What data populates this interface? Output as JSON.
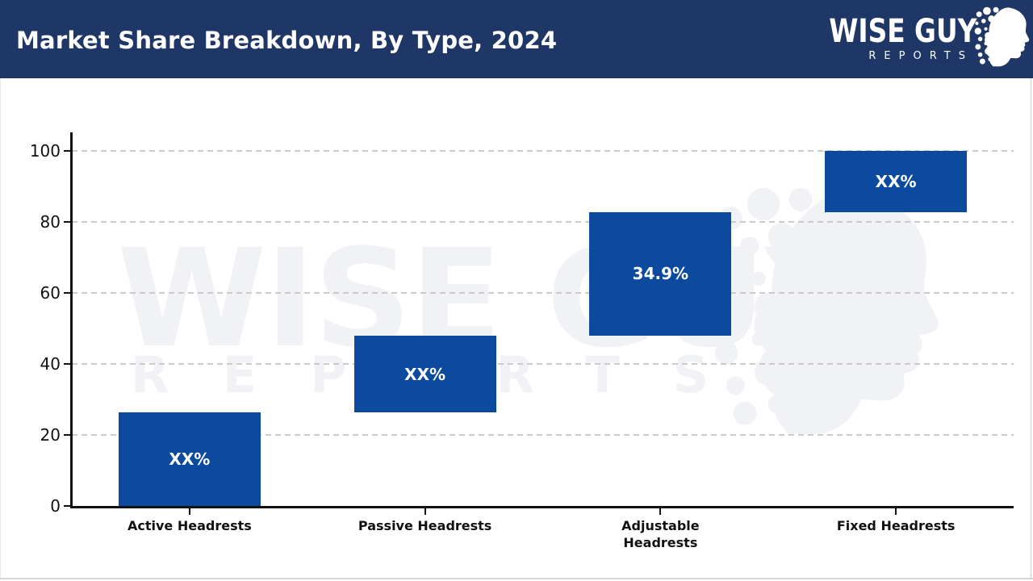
{
  "header": {
    "title": "Market Share Breakdown, By Type, 2024",
    "logo": {
      "line1": "WISE GUY",
      "line2": "REPORTS"
    }
  },
  "watermark": {
    "line1": "WISE GUY",
    "line2": "REPORTS"
  },
  "chart_data": {
    "type": "bar",
    "subtype": "waterfall",
    "title": "Market Share Breakdown, By Type, 2024",
    "unit": "%",
    "categories": [
      "Active Headrests",
      "Passive Headrests",
      "Adjustable\nHeadrests",
      "Fixed Headrests"
    ],
    "series": [
      {
        "name": "Market share",
        "segments": [
          {
            "category": "Active Headrests",
            "start": 0,
            "end": 26.3,
            "label": "XX%"
          },
          {
            "category": "Passive Headrests",
            "start": 26.3,
            "end": 47.9,
            "label": "XX%"
          },
          {
            "category": "Adjustable Headrests",
            "start": 47.9,
            "end": 82.8,
            "label": "34.9%"
          },
          {
            "category": "Fixed Headrests",
            "start": 82.8,
            "end": 100,
            "label": "XX%"
          }
        ]
      }
    ],
    "ylim": [
      0,
      100
    ],
    "yticks": [
      0,
      20,
      40,
      60,
      80,
      100
    ],
    "grid": "horizontal-dashed",
    "legend": "none",
    "colors": {
      "bar": "#0c4a9e",
      "bar_label": "#ffffff",
      "grid": "#cbcbcb",
      "axis": "#111111",
      "header_bg": "#1f3766",
      "watermark": "#f1f2f5"
    }
  }
}
